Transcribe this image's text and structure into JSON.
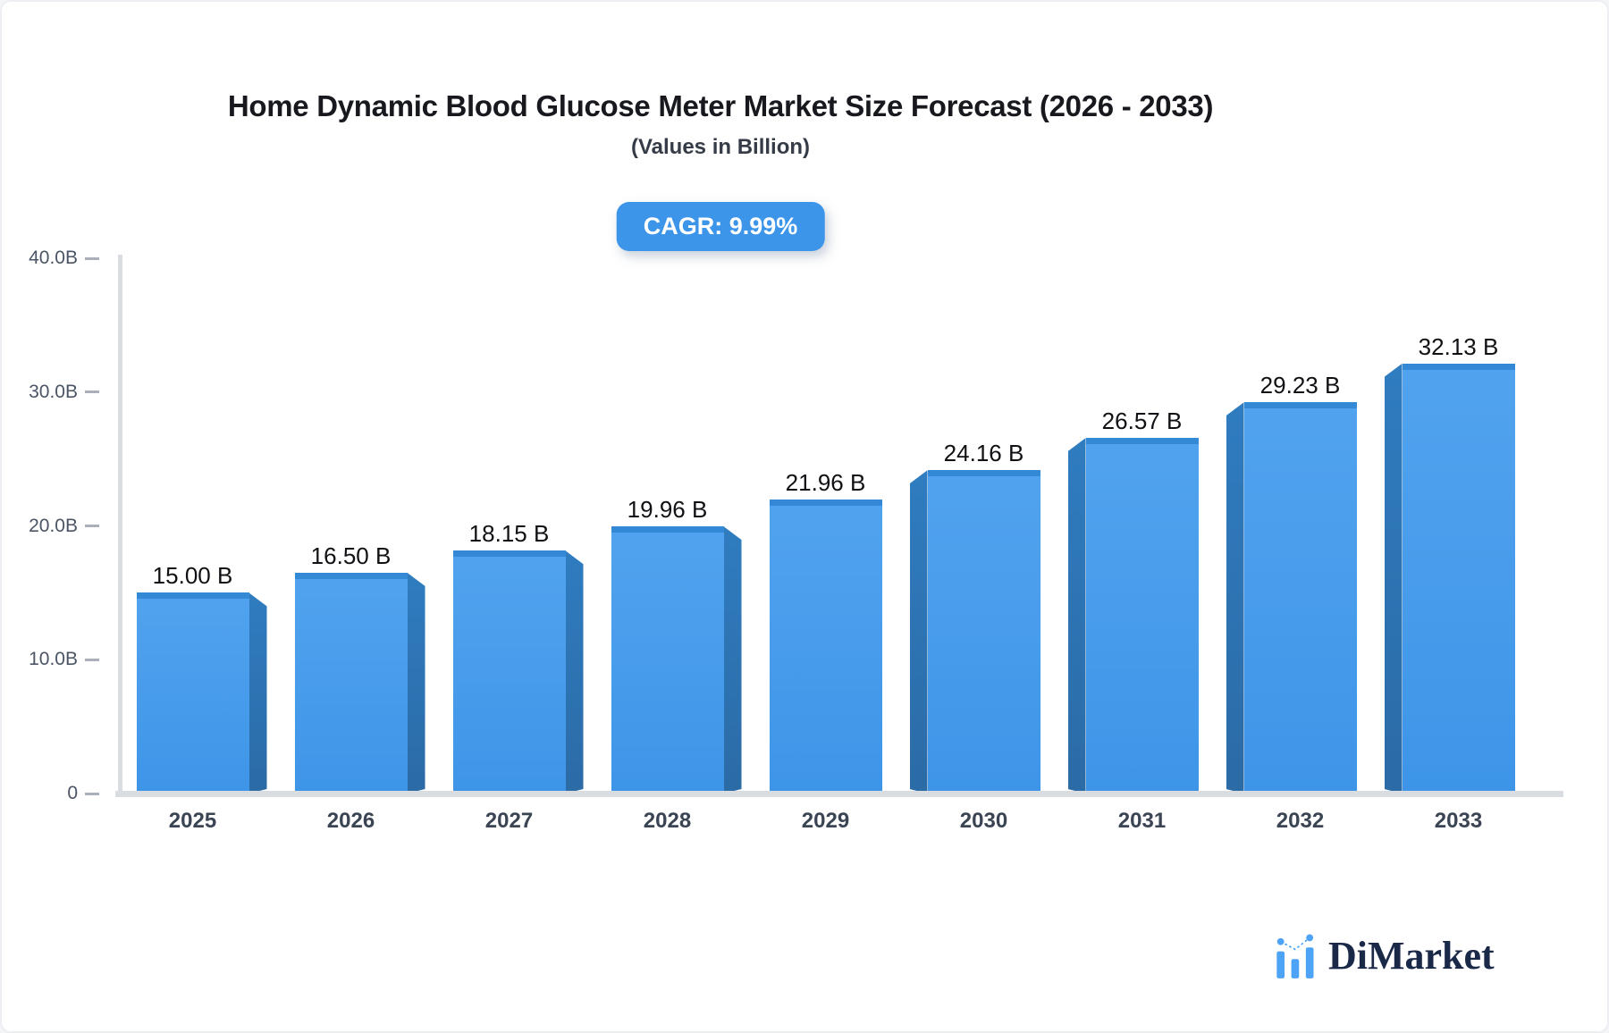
{
  "title": "Home Dynamic Blood Glucose Meter Market Size Forecast (2026 - 2033)",
  "subtitle": "(Values in Billion)",
  "cagr_badge": "CAGR: 9.99%",
  "brand": {
    "name": "DiMarket",
    "icon": "bar-chart-logo-icon"
  },
  "colors": {
    "accent": "#3d95ea",
    "bar_front": "#3f97ea",
    "bar_top_cap": "#3389d6",
    "bar_side": "#2e74b4",
    "axis": "#d9dce1",
    "axis_text": "#4b5565",
    "value_text": "#101114",
    "logo_navy": "#1b2949"
  },
  "chart_data": {
    "type": "bar",
    "title": "Home Dynamic Blood Glucose Meter Market Size Forecast (2026 - 2033)",
    "subtitle": "(Values in Billion)",
    "annotation": "CAGR: 9.99%",
    "categories": [
      "2025",
      "2026",
      "2027",
      "2028",
      "2029",
      "2030",
      "2031",
      "2032",
      "2033"
    ],
    "values": [
      15.0,
      16.5,
      18.15,
      19.96,
      21.96,
      24.16,
      26.57,
      29.23,
      32.13
    ],
    "value_labels": [
      "15.00 B",
      "16.50 B",
      "18.15 B",
      "19.96 B",
      "21.96 B",
      "24.16 B",
      "26.57 B",
      "29.23 B",
      "32.13 B"
    ],
    "unit": "Billion",
    "xlabel": "",
    "ylabel": "",
    "ylim": [
      0,
      40
    ],
    "y_axis": {
      "ticks": [
        {
          "label": "40.0B",
          "value": 40
        },
        {
          "label": "30.0B",
          "value": 30
        },
        {
          "label": "20.0B",
          "value": 20
        },
        {
          "label": "10.0B",
          "value": 10
        },
        {
          "label": "0",
          "value": 0
        }
      ]
    },
    "grid": false,
    "legend": false
  }
}
